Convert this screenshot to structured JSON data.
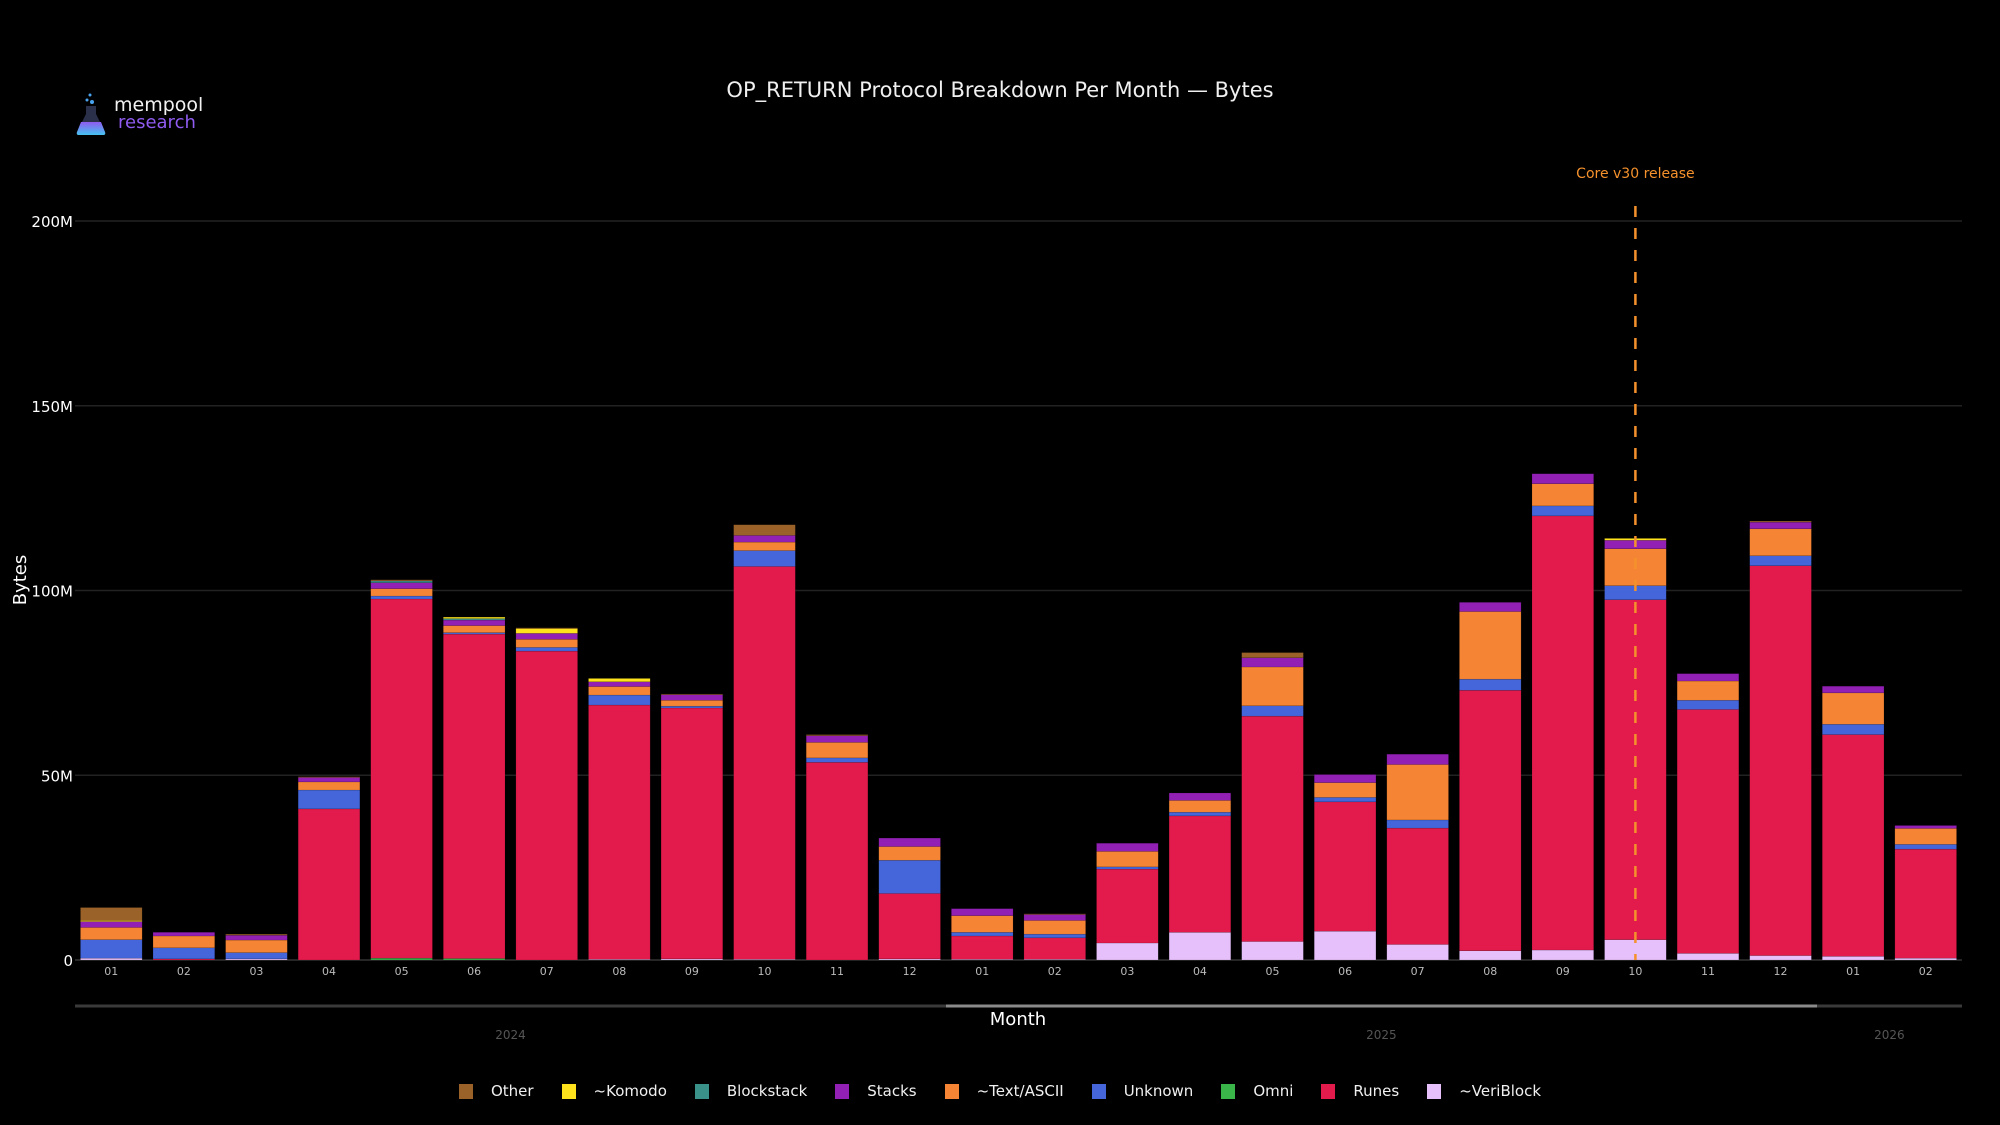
{
  "logo": {
    "main": "mempool",
    "sub": "research"
  },
  "chart_data": {
    "type": "bar",
    "stacked": true,
    "title": "OP_RETURN Protocol Breakdown Per Month — Bytes",
    "xlabel": "Month",
    "ylabel": "Bytes",
    "ylim": [
      0,
      200000000
    ],
    "yticks": [
      {
        "value": 0,
        "label": "0"
      },
      {
        "value": 50000000,
        "label": "50M"
      },
      {
        "value": 100000000,
        "label": "100M"
      },
      {
        "value": 150000000,
        "label": "150M"
      },
      {
        "value": 200000000,
        "label": "200M"
      }
    ],
    "grid": true,
    "legend_position": "bottom-center",
    "categories": [
      "01",
      "02",
      "03",
      "04",
      "05",
      "06",
      "07",
      "08",
      "09",
      "10",
      "11",
      "12",
      "01",
      "02",
      "03",
      "04",
      "05",
      "06",
      "07",
      "08",
      "09",
      "10",
      "11",
      "12",
      "01",
      "02"
    ],
    "years": [
      {
        "label": "2024",
        "start_index": 0,
        "end_index": 11
      },
      {
        "label": "2025",
        "start_index": 12,
        "end_index": 23
      },
      {
        "label": "2026",
        "start_index": 24,
        "end_index": 25
      }
    ],
    "annotation": {
      "label": "Core v30 release",
      "category_index": 21,
      "color": "#f5912c"
    },
    "series": [
      {
        "name": "~VeriBlock",
        "color": "#e6c0fb",
        "values": [
          0.5,
          0,
          0.3,
          0,
          0,
          0,
          0,
          0.2,
          0.3,
          0.2,
          0,
          0.3,
          0.2,
          0.2,
          4.6,
          7.5,
          5.0,
          7.8,
          4.2,
          2.5,
          2.7,
          5.5,
          1.8,
          1.2,
          1.0,
          0.5
        ]
      },
      {
        "name": "Omni",
        "color": "#39b54a",
        "values": [
          0,
          0,
          0,
          0,
          0.5,
          0.4,
          0,
          0,
          0,
          0,
          0,
          0,
          0,
          0,
          0,
          0,
          0,
          0,
          0,
          0,
          0,
          0,
          0,
          0,
          0,
          0
        ]
      },
      {
        "name": "Runes",
        "color": "#e31b4c",
        "values": [
          0,
          0.3,
          0,
          40.9,
          97.2,
          87.8,
          83.6,
          68.8,
          67.9,
          106.3,
          53.5,
          17.7,
          6.3,
          5.8,
          20.0,
          31.5,
          61.0,
          35.0,
          31.5,
          70.5,
          117.5,
          92.0,
          66.0,
          105.5,
          60.0,
          29.5
        ]
      },
      {
        "name": "Unknown",
        "color": "#4466da",
        "values": [
          5.0,
          3.0,
          1.7,
          5.1,
          0.8,
          0.4,
          1.0,
          2.7,
          0.5,
          4.3,
          1.2,
          9.0,
          1.0,
          1.0,
          0.6,
          1.0,
          2.8,
          1.2,
          2.2,
          3.0,
          2.7,
          3.8,
          2.5,
          2.7,
          2.8,
          1.3
        ]
      },
      {
        "name": "~Text/ASCII",
        "color": "#f58534",
        "values": [
          3.3,
          3.2,
          3.4,
          2.2,
          2.0,
          1.9,
          2.2,
          2.3,
          1.6,
          2.3,
          4.2,
          3.7,
          4.5,
          3.7,
          4.2,
          3.2,
          10.5,
          4.0,
          15.0,
          18.3,
          6.0,
          10.0,
          5.2,
          7.3,
          8.5,
          4.3
        ]
      },
      {
        "name": "Stacks",
        "color": "#9320b4",
        "values": [
          1.6,
          1.0,
          1.3,
          1.2,
          1.6,
          1.5,
          1.6,
          1.3,
          1.5,
          1.8,
          1.8,
          2.3,
          1.9,
          1.6,
          2.2,
          2.0,
          2.5,
          2.2,
          2.8,
          2.5,
          2.7,
          2.3,
          2.0,
          1.8,
          1.8,
          0.8
        ]
      },
      {
        "name": "Blockstack",
        "color": "#3a918a",
        "values": [
          0,
          0,
          0,
          0,
          0.5,
          0.4,
          0,
          0,
          0,
          0,
          0,
          0,
          0,
          0,
          0,
          0,
          0,
          0,
          0,
          0,
          0,
          0,
          0,
          0,
          0,
          0
        ]
      },
      {
        "name": "~Komodo",
        "color": "#fde21c",
        "values": [
          0.3,
          0,
          0,
          0,
          0,
          0.4,
          1.3,
          0.9,
          0,
          0,
          0,
          0,
          0,
          0,
          0,
          0,
          0,
          0,
          0,
          0,
          0,
          0.5,
          0,
          0,
          0,
          0
        ]
      },
      {
        "name": "Other",
        "color": "#9a6228",
        "values": [
          3.5,
          0,
          0.3,
          0.2,
          0.3,
          0,
          0.2,
          0,
          0.2,
          2.9,
          0.3,
          0,
          0,
          0.2,
          0,
          0,
          1.4,
          0,
          0,
          0,
          0,
          0,
          0,
          0.3,
          0,
          0
        ]
      }
    ],
    "value_unit": "millions of bytes"
  },
  "legend_order": [
    "Other",
    "~Komodo",
    "Blockstack",
    "Stacks",
    "~Text/ASCII",
    "Unknown",
    "Omni",
    "Runes",
    "~VeriBlock"
  ]
}
